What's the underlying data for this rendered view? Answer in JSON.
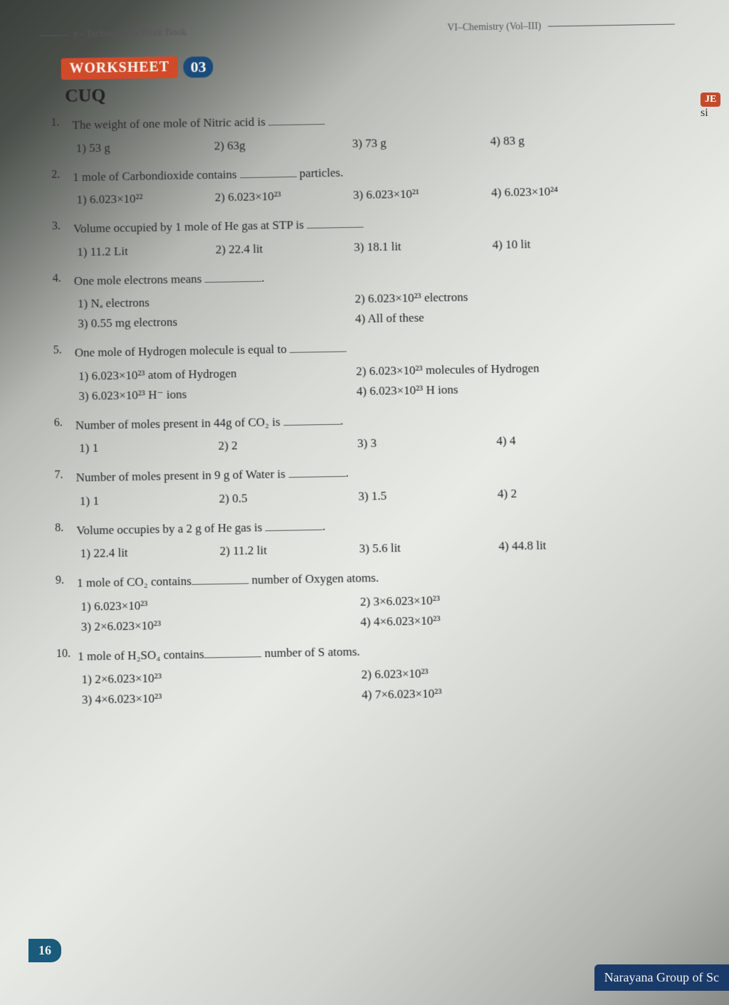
{
  "header": {
    "left": "e - Techno Class Work Book",
    "right": "VI–Chemistry (Vol–III)"
  },
  "worksheet": {
    "label": "WORKSHEET",
    "number": "03"
  },
  "section_title": "CUQ",
  "side": {
    "je": "JE",
    "si": "si"
  },
  "questions": [
    {
      "num": "1.",
      "text_pre": "The weight of one mole of Nitric acid is ",
      "opts": [
        "1) 53 g",
        "2) 63g",
        "3) 73 g",
        "4) 83 g"
      ],
      "layout": "four-col"
    },
    {
      "num": "2.",
      "text_pre": "1 mole of Carbondioxide contains ",
      "text_post": " particles.",
      "opts": [
        "1) 6.023×10²²",
        "2) 6.023×10²³",
        "3) 6.023×10²¹",
        "4) 6.023×10²⁴"
      ],
      "layout": "four-col"
    },
    {
      "num": "3.",
      "text_pre": "Volume occupied by 1 mole of He gas at STP is ",
      "opts": [
        "1) 11.2 Lit",
        "2) 22.4 lit",
        "3) 18.1 lit",
        "4) 10 lit"
      ],
      "layout": "four-col"
    },
    {
      "num": "4.",
      "text_pre": "One mole electrons means ",
      "text_post": ".",
      "opts": [
        "1) Nₐ electrons",
        "2) 6.023×10²³ electrons",
        "3) 0.55 mg electrons",
        "4) All of these"
      ],
      "layout": "two-col"
    },
    {
      "num": "5.",
      "text_pre": "One mole of Hydrogen molecule is equal to ",
      "opts": [
        "1) 6.023×10²³ atom of Hydrogen",
        "2) 6.023×10²³ molecules of Hydrogen",
        "3) 6.023×10²³ H⁻ ions",
        "4) 6.023×10²³ H ions"
      ],
      "layout": "two-col"
    },
    {
      "num": "6.",
      "text_pre": "Number of moles present in 44g of CO₂ is ",
      "text_post": ".",
      "opts": [
        "1) 1",
        "2) 2",
        "3) 3",
        "4) 4"
      ],
      "layout": "four-col"
    },
    {
      "num": "7.",
      "text_pre": "Number of moles present in 9 g of Water is ",
      "text_post": ".",
      "opts": [
        "1) 1",
        "2) 0.5",
        "3) 1.5",
        "4) 2"
      ],
      "layout": "four-col"
    },
    {
      "num": "8.",
      "text_pre": "Volume occupies by a 2 g of He gas is ",
      "text_post": ".",
      "opts": [
        "1) 22.4 lit",
        "2) 11.2 lit",
        "3) 5.6 lit",
        "4) 44.8 lit"
      ],
      "layout": "four-col"
    },
    {
      "num": "9.",
      "text_pre": "1 mole of CO₂ contains",
      "text_post": " number of Oxygen atoms.",
      "opts": [
        "1) 6.023×10²³",
        "2) 3×6.023×10²³",
        "3) 2×6.023×10²³",
        "4) 4×6.023×10²³"
      ],
      "layout": "two-col"
    },
    {
      "num": "10.",
      "text_pre": "1 mole of H₂SO₄ contains",
      "text_post": " number of S atoms.",
      "opts": [
        "1) 2×6.023×10²³",
        "2) 6.023×10²³",
        "3) 4×6.023×10²³",
        "4) 7×6.023×10²³"
      ],
      "layout": "two-col"
    }
  ],
  "page_number": "16",
  "footer_brand": "Narayana Group of Sc",
  "colors": {
    "worksheet_bg": "#d14a2a",
    "number_bg": "#1a4a7a",
    "brand_bg": "#1a3a6a",
    "pagenum_bg": "#1a5a7a",
    "text": "#2a2a2a"
  },
  "typography": {
    "base_font": "Times New Roman",
    "q_fontsize_pt": 13
  }
}
